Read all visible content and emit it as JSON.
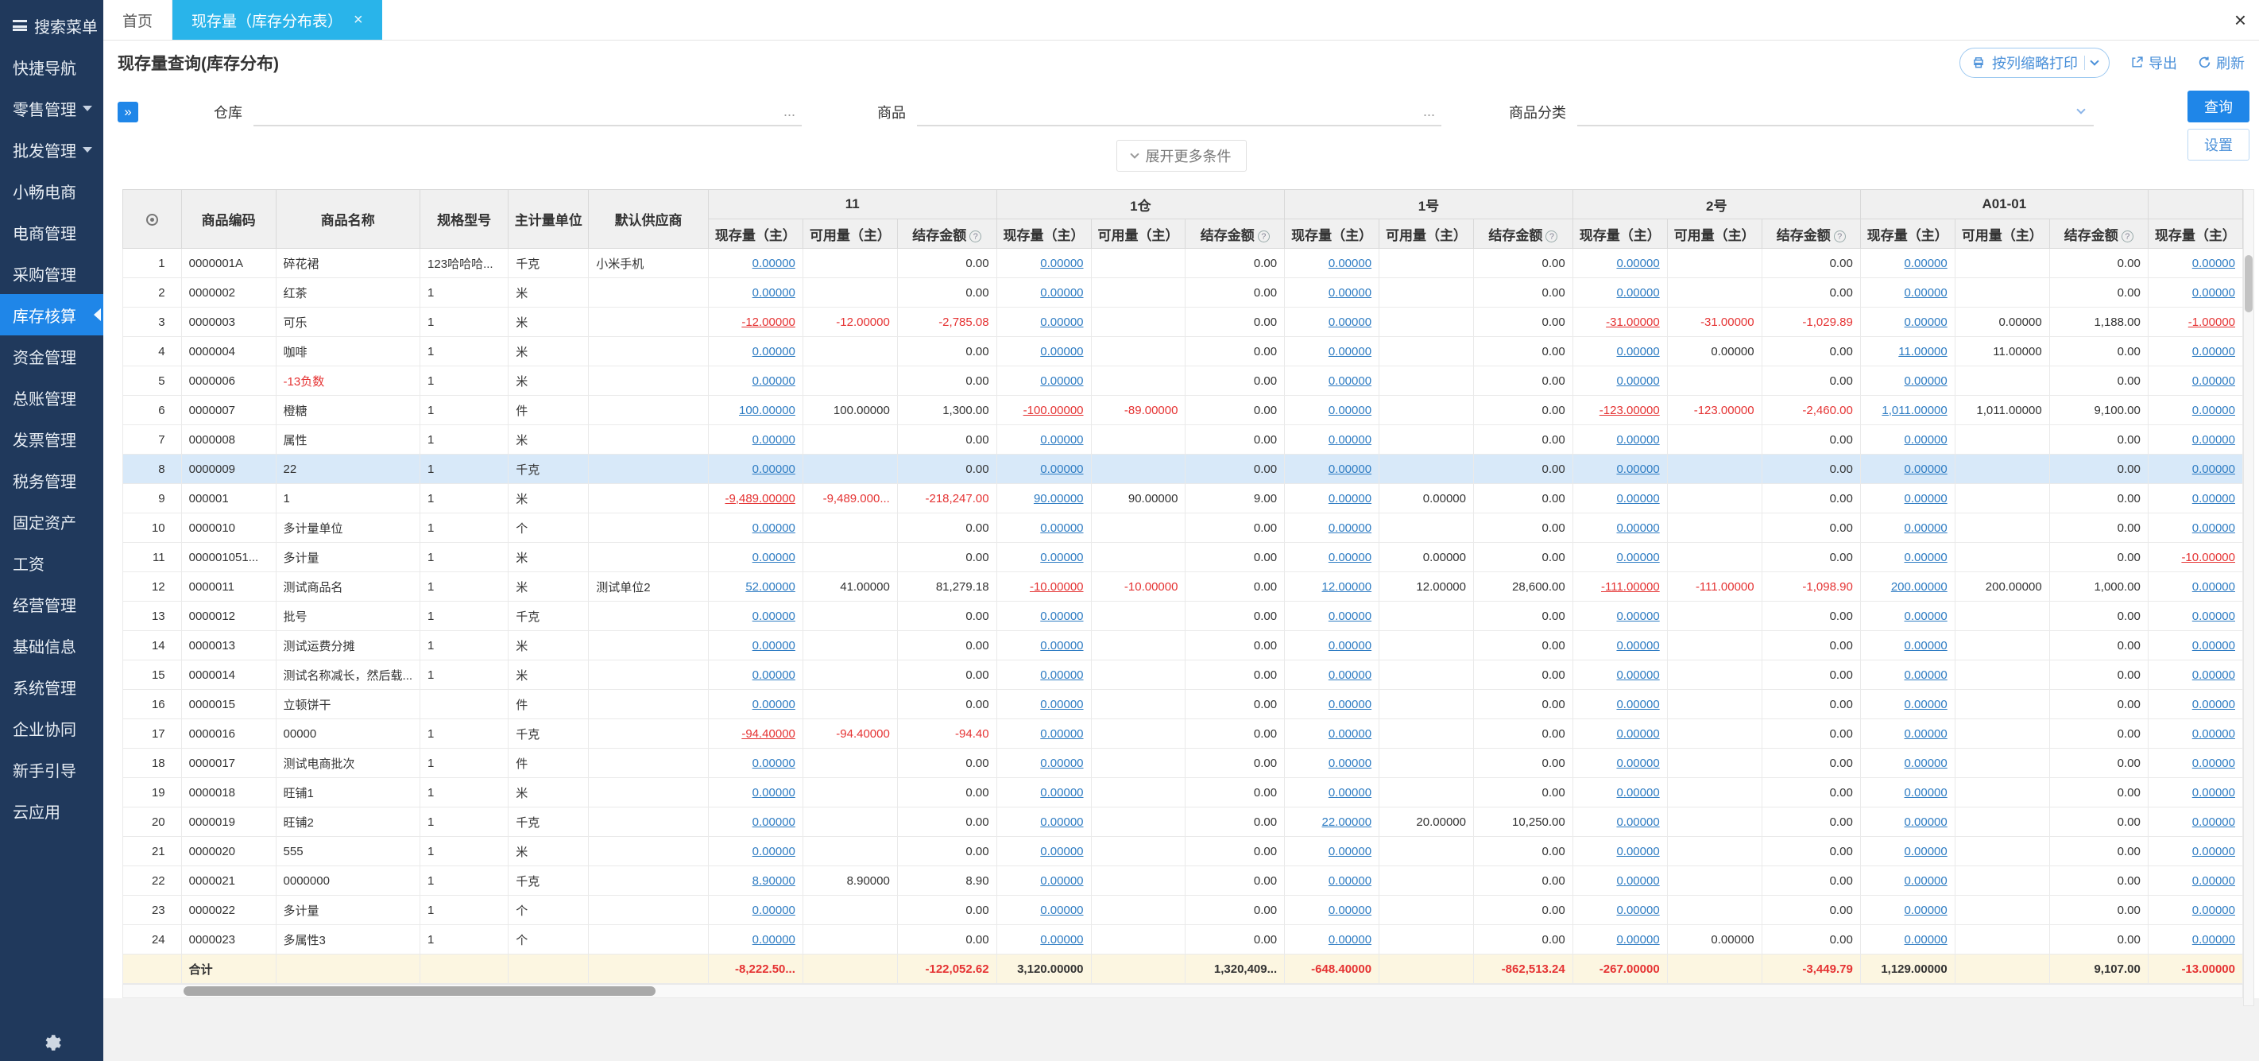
{
  "colors": {
    "accent": "#1f86e8",
    "tab_active": "#29b4ea",
    "link": "#2e7cc3",
    "negative": "#e53333",
    "selected_row": "#d8e9f9",
    "total_bg": "#fcf6e1",
    "sidebar_bg": "#20395c"
  },
  "window": {
    "close_label": "×"
  },
  "icons": {
    "help": "?",
    "collapse": "»",
    "ellipsis": "..."
  },
  "sidebar": {
    "items": [
      {
        "label": "搜索菜单",
        "icon": "menu-icon"
      },
      {
        "label": "快捷导航"
      },
      {
        "label": "零售管理",
        "arrow": true
      },
      {
        "label": "批发管理",
        "arrow": true
      },
      {
        "label": "小畅电商"
      },
      {
        "label": "电商管理"
      },
      {
        "label": "采购管理"
      },
      {
        "label": "库存核算",
        "active": true
      },
      {
        "label": "资金管理"
      },
      {
        "label": "总账管理"
      },
      {
        "label": "发票管理"
      },
      {
        "label": "税务管理"
      },
      {
        "label": "固定资产"
      },
      {
        "label": "工资"
      },
      {
        "label": "经营管理"
      },
      {
        "label": "基础信息"
      },
      {
        "label": "系统管理"
      },
      {
        "label": "企业协同"
      },
      {
        "label": "新手引导"
      },
      {
        "label": "云应用"
      }
    ]
  },
  "tabs": [
    {
      "label": "首页",
      "active": false,
      "closable": false
    },
    {
      "label": "现存量（库存分布表）",
      "active": true,
      "closable": true
    }
  ],
  "page_title": "现存量查询(库存分布)",
  "toolbar": {
    "print": "按列缩略打印",
    "export": "导出",
    "refresh": "刷新"
  },
  "filters": {
    "warehouse_label": "仓库",
    "product_label": "商品",
    "category_label": "商品分类",
    "query": "查询",
    "settings": "设置",
    "expand_more": "展开更多条件"
  },
  "table": {
    "fixed_headers": [
      "商品编码",
      "商品名称",
      "规格型号",
      "主计量单位",
      "默认供应商"
    ],
    "groups": [
      "11",
      "1仓",
      "1号",
      "2号",
      "A01-01"
    ],
    "sub_headers": [
      "现存量（主）",
      "可用量（主）",
      "结存金额"
    ],
    "trailing_sub_header": "现存量（主）",
    "total_label": "合计",
    "rows": [
      {
        "no": 1,
        "code": "0000001A",
        "name": "碎花裙",
        "spec": "123哈哈哈...",
        "unit": "千克",
        "supplier": "小米手机",
        "selected": false,
        "name_red": false,
        "cells": [
          "0.00000",
          "",
          "0.00",
          "0.00000",
          "",
          "0.00",
          "0.00000",
          "",
          "0.00",
          "0.00000",
          "",
          "0.00",
          "0.00000",
          "",
          "0.00"
        ],
        "trailing": "0.00000"
      },
      {
        "no": 2,
        "code": "0000002",
        "name": "红茶",
        "spec": "1",
        "unit": "米",
        "supplier": "",
        "selected": false,
        "name_red": false,
        "cells": [
          "0.00000",
          "",
          "0.00",
          "0.00000",
          "",
          "0.00",
          "0.00000",
          "",
          "0.00",
          "0.00000",
          "",
          "0.00",
          "0.00000",
          "",
          "0.00"
        ],
        "trailing": "0.00000"
      },
      {
        "no": 3,
        "code": "0000003",
        "name": "可乐",
        "spec": "1",
        "unit": "米",
        "supplier": "",
        "selected": false,
        "name_red": false,
        "cells": [
          "-12.00000",
          "-12.00000",
          "-2,785.08",
          "0.00000",
          "",
          "0.00",
          "0.00000",
          "",
          "0.00",
          "-31.00000",
          "-31.00000",
          "-1,029.89",
          "0.00000",
          "0.00000",
          "1,188.00"
        ],
        "trailing": "-1.00000"
      },
      {
        "no": 4,
        "code": "0000004",
        "name": "咖啡",
        "spec": "1",
        "unit": "米",
        "supplier": "",
        "selected": false,
        "name_red": false,
        "cells": [
          "0.00000",
          "",
          "0.00",
          "0.00000",
          "",
          "0.00",
          "0.00000",
          "",
          "0.00",
          "0.00000",
          "0.00000",
          "0.00",
          "11.00000",
          "11.00000",
          "0.00"
        ],
        "trailing": "0.00000"
      },
      {
        "no": 5,
        "code": "0000006",
        "name": "-13负数",
        "spec": "1",
        "unit": "米",
        "supplier": "",
        "selected": false,
        "name_red": true,
        "cells": [
          "0.00000",
          "",
          "0.00",
          "0.00000",
          "",
          "0.00",
          "0.00000",
          "",
          "0.00",
          "0.00000",
          "",
          "0.00",
          "0.00000",
          "",
          "0.00"
        ],
        "trailing": "0.00000"
      },
      {
        "no": 6,
        "code": "0000007",
        "name": "橙糖",
        "spec": "1",
        "unit": "件",
        "supplier": "",
        "selected": false,
        "name_red": false,
        "cells": [
          "100.00000",
          "100.00000",
          "1,300.00",
          "-100.00000",
          "-89.00000",
          "0.00",
          "0.00000",
          "",
          "0.00",
          "-123.00000",
          "-123.00000",
          "-2,460.00",
          "1,011.00000",
          "1,011.00000",
          "9,100.00"
        ],
        "trailing": "0.00000"
      },
      {
        "no": 7,
        "code": "0000008",
        "name": "属性",
        "spec": "1",
        "unit": "米",
        "supplier": "",
        "selected": false,
        "name_red": false,
        "cells": [
          "0.00000",
          "",
          "0.00",
          "0.00000",
          "",
          "0.00",
          "0.00000",
          "",
          "0.00",
          "0.00000",
          "",
          "0.00",
          "0.00000",
          "",
          "0.00"
        ],
        "trailing": "0.00000"
      },
      {
        "no": 8,
        "code": "0000009",
        "name": "22",
        "spec": "1",
        "unit": "千克",
        "supplier": "",
        "selected": true,
        "name_red": false,
        "cells": [
          "0.00000",
          "",
          "0.00",
          "0.00000",
          "",
          "0.00",
          "0.00000",
          "",
          "0.00",
          "0.00000",
          "",
          "0.00",
          "0.00000",
          "",
          "0.00"
        ],
        "trailing": "0.00000"
      },
      {
        "no": 9,
        "code": "000001",
        "name": "1",
        "spec": "1",
        "unit": "米",
        "supplier": "",
        "selected": false,
        "name_red": false,
        "cells": [
          "-9,489.00000",
          "-9,489.000...",
          "-218,247.00",
          "90.00000",
          "90.00000",
          "9.00",
          "0.00000",
          "0.00000",
          "0.00",
          "0.00000",
          "",
          "0.00",
          "0.00000",
          "",
          "0.00"
        ],
        "trailing": "0.00000"
      },
      {
        "no": 10,
        "code": "0000010",
        "name": "多计量单位",
        "spec": "1",
        "unit": "个",
        "supplier": "",
        "selected": false,
        "name_red": false,
        "cells": [
          "0.00000",
          "",
          "0.00",
          "0.00000",
          "",
          "0.00",
          "0.00000",
          "",
          "0.00",
          "0.00000",
          "",
          "0.00",
          "0.00000",
          "",
          "0.00"
        ],
        "trailing": "0.00000"
      },
      {
        "no": 11,
        "code": "000001051...",
        "name": "多计量",
        "spec": "1",
        "unit": "米",
        "supplier": "",
        "selected": false,
        "name_red": false,
        "cells": [
          "0.00000",
          "",
          "0.00",
          "0.00000",
          "",
          "0.00",
          "0.00000",
          "0.00000",
          "0.00",
          "0.00000",
          "",
          "0.00",
          "0.00000",
          "",
          "0.00"
        ],
        "trailing": "-10.00000"
      },
      {
        "no": 12,
        "code": "0000011",
        "name": "测试商品名",
        "spec": "1",
        "unit": "米",
        "supplier": "测试单位2",
        "selected": false,
        "name_red": false,
        "cells": [
          "52.00000",
          "41.00000",
          "81,279.18",
          "-10.00000",
          "-10.00000",
          "0.00",
          "12.00000",
          "12.00000",
          "28,600.00",
          "-111.00000",
          "-111.00000",
          "-1,098.90",
          "200.00000",
          "200.00000",
          "1,000.00"
        ],
        "trailing": "0.00000"
      },
      {
        "no": 13,
        "code": "0000012",
        "name": "批号",
        "spec": "1",
        "unit": "千克",
        "supplier": "",
        "selected": false,
        "name_red": false,
        "cells": [
          "0.00000",
          "",
          "0.00",
          "0.00000",
          "",
          "0.00",
          "0.00000",
          "",
          "0.00",
          "0.00000",
          "",
          "0.00",
          "0.00000",
          "",
          "0.00"
        ],
        "trailing": "0.00000"
      },
      {
        "no": 14,
        "code": "0000013",
        "name": "测试运费分摊",
        "spec": "1",
        "unit": "米",
        "supplier": "",
        "selected": false,
        "name_red": false,
        "cells": [
          "0.00000",
          "",
          "0.00",
          "0.00000",
          "",
          "0.00",
          "0.00000",
          "",
          "0.00",
          "0.00000",
          "",
          "0.00",
          "0.00000",
          "",
          "0.00"
        ],
        "trailing": "0.00000"
      },
      {
        "no": 15,
        "code": "0000014",
        "name": "测试名称减长，然后载...",
        "spec": "1",
        "unit": "米",
        "supplier": "",
        "selected": false,
        "name_red": false,
        "cells": [
          "0.00000",
          "",
          "0.00",
          "0.00000",
          "",
          "0.00",
          "0.00000",
          "",
          "0.00",
          "0.00000",
          "",
          "0.00",
          "0.00000",
          "",
          "0.00"
        ],
        "trailing": "0.00000"
      },
      {
        "no": 16,
        "code": "0000015",
        "name": "立顿饼干",
        "spec": "",
        "unit": "件",
        "supplier": "",
        "selected": false,
        "name_red": false,
        "cells": [
          "0.00000",
          "",
          "0.00",
          "0.00000",
          "",
          "0.00",
          "0.00000",
          "",
          "0.00",
          "0.00000",
          "",
          "0.00",
          "0.00000",
          "",
          "0.00"
        ],
        "trailing": "0.00000"
      },
      {
        "no": 17,
        "code": "0000016",
        "name": "00000",
        "spec": "1",
        "unit": "千克",
        "supplier": "",
        "selected": false,
        "name_red": false,
        "cells": [
          "-94.40000",
          "-94.40000",
          "-94.40",
          "0.00000",
          "",
          "0.00",
          "0.00000",
          "",
          "0.00",
          "0.00000",
          "",
          "0.00",
          "0.00000",
          "",
          "0.00"
        ],
        "trailing": "0.00000"
      },
      {
        "no": 18,
        "code": "0000017",
        "name": "测试电商批次",
        "spec": "1",
        "unit": "件",
        "supplier": "",
        "selected": false,
        "name_red": false,
        "cells": [
          "0.00000",
          "",
          "0.00",
          "0.00000",
          "",
          "0.00",
          "0.00000",
          "",
          "0.00",
          "0.00000",
          "",
          "0.00",
          "0.00000",
          "",
          "0.00"
        ],
        "trailing": "0.00000"
      },
      {
        "no": 19,
        "code": "0000018",
        "name": "旺铺1",
        "spec": "1",
        "unit": "米",
        "supplier": "",
        "selected": false,
        "name_red": false,
        "cells": [
          "0.00000",
          "",
          "0.00",
          "0.00000",
          "",
          "0.00",
          "0.00000",
          "",
          "0.00",
          "0.00000",
          "",
          "0.00",
          "0.00000",
          "",
          "0.00"
        ],
        "trailing": "0.00000"
      },
      {
        "no": 20,
        "code": "0000019",
        "name": "旺铺2",
        "spec": "1",
        "unit": "千克",
        "supplier": "",
        "selected": false,
        "name_red": false,
        "cells": [
          "0.00000",
          "",
          "0.00",
          "0.00000",
          "",
          "0.00",
          "22.00000",
          "20.00000",
          "10,250.00",
          "0.00000",
          "",
          "0.00",
          "0.00000",
          "",
          "0.00"
        ],
        "trailing": "0.00000"
      },
      {
        "no": 21,
        "code": "0000020",
        "name": "555",
        "spec": "1",
        "unit": "米",
        "supplier": "",
        "selected": false,
        "name_red": false,
        "cells": [
          "0.00000",
          "",
          "0.00",
          "0.00000",
          "",
          "0.00",
          "0.00000",
          "",
          "0.00",
          "0.00000",
          "",
          "0.00",
          "0.00000",
          "",
          "0.00"
        ],
        "trailing": "0.00000"
      },
      {
        "no": 22,
        "code": "0000021",
        "name": "0000000",
        "spec": "1",
        "unit": "千克",
        "supplier": "",
        "selected": false,
        "name_red": false,
        "cells": [
          "8.90000",
          "8.90000",
          "8.90",
          "0.00000",
          "",
          "0.00",
          "0.00000",
          "",
          "0.00",
          "0.00000",
          "",
          "0.00",
          "0.00000",
          "",
          "0.00"
        ],
        "trailing": "0.00000"
      },
      {
        "no": 23,
        "code": "0000022",
        "name": "多计量",
        "spec": "1",
        "unit": "个",
        "supplier": "",
        "selected": false,
        "name_red": false,
        "cells": [
          "0.00000",
          "",
          "0.00",
          "0.00000",
          "",
          "0.00",
          "0.00000",
          "",
          "0.00",
          "0.00000",
          "",
          "0.00",
          "0.00000",
          "",
          "0.00"
        ],
        "trailing": "0.00000"
      },
      {
        "no": 24,
        "code": "0000023",
        "name": "多属性3",
        "spec": "1",
        "unit": "个",
        "supplier": "",
        "selected": false,
        "name_red": false,
        "cells": [
          "0.00000",
          "",
          "0.00",
          "0.00000",
          "",
          "0.00",
          "0.00000",
          "",
          "0.00",
          "0.00000",
          "0.00000",
          "0.00",
          "0.00000",
          "",
          "0.00"
        ],
        "trailing": "0.00000"
      }
    ],
    "total": {
      "cells": [
        "-8,222.50...",
        "",
        "-122,052.62",
        "3,120.00000",
        "",
        "1,320,409...",
        "-648.40000",
        "",
        "-862,513.24",
        "-267.00000",
        "",
        "-3,449.79",
        "1,129.00000",
        "",
        "9,107.00"
      ],
      "trailing": "-13.00000"
    }
  }
}
